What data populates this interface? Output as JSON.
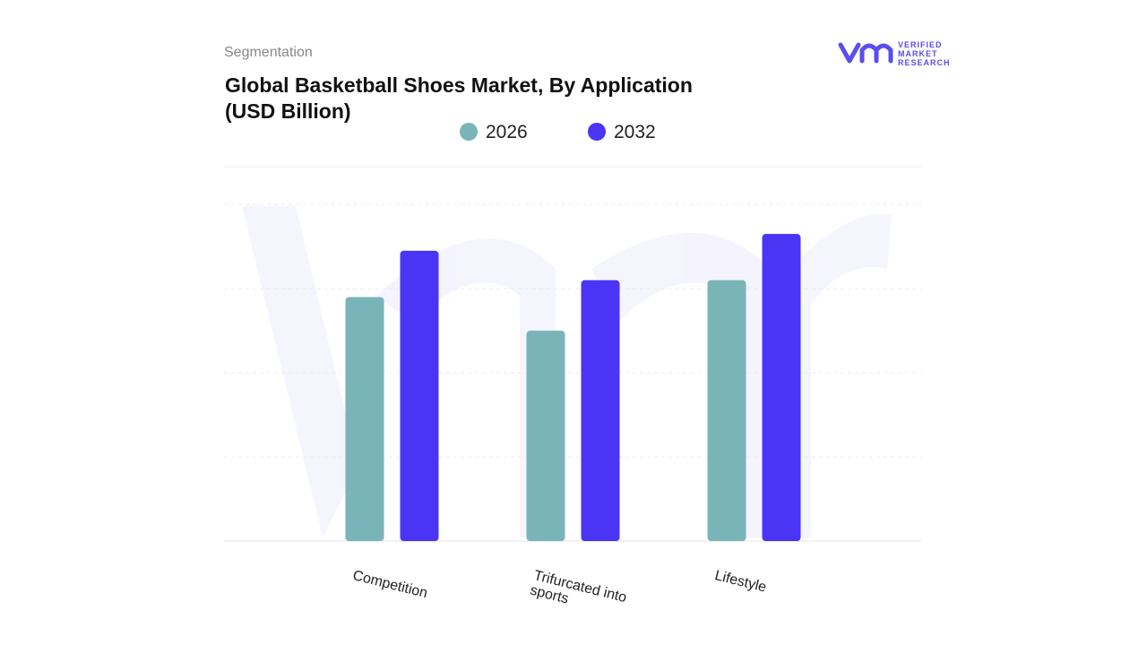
{
  "chart_data": {
    "type": "bar",
    "section": "Segmentation",
    "title": "Global Basketball Shoes Market, By Application (USD Billion)",
    "brand": [
      "VERIFIED",
      "MARKET",
      "RESEARCH"
    ],
    "categories": [
      "Competition",
      "Trifurcated into sports",
      "Lifestyle"
    ],
    "series": [
      {
        "name": "2026",
        "color": "#79b4b8",
        "values": [
          2.9,
          2.5,
          3.1
        ]
      },
      {
        "name": "2032",
        "color": "#4b35f5",
        "values": [
          3.45,
          3.1,
          3.65
        ]
      }
    ],
    "ylim": [
      0,
      4.45
    ],
    "yticks": [
      0,
      1,
      2,
      3,
      4
    ],
    "grid": true
  }
}
